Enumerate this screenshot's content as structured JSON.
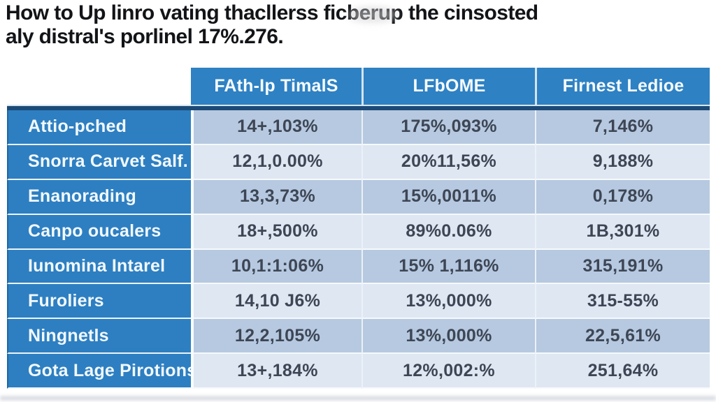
{
  "title": {
    "line1": "How to Up linro vating thacllerss ficberup the cinsosted",
    "line2": "aly distral's porlinel 17%.276."
  },
  "chart_data": {
    "type": "table",
    "title": "How to Up linro vating thacllerss ficberup the cinsosted aly distral's porlinel 17%.276.",
    "columns": [
      "FAth-Ip TimalS",
      "LFbOME",
      "Firnest Ledioe"
    ],
    "rows": [
      {
        "label": "Attio-pched",
        "values": [
          "14+,103%",
          "175%,093%",
          "7,146%"
        ]
      },
      {
        "label": "Snorra Carvet Salf.",
        "values": [
          "12,1,0.00%",
          "20%11,56%",
          "9,188%"
        ]
      },
      {
        "label": "Enanorading",
        "values": [
          "13,3,73%",
          "15%,0011%",
          "0,178%"
        ]
      },
      {
        "label": "Canpo oucalers",
        "values": [
          "18+,500%",
          "89%0.06%",
          "1B,301%"
        ]
      },
      {
        "label": "Iunomina Intarel",
        "values": [
          "10,1:1:06%",
          "15% 1,116%",
          "315,191%"
        ]
      },
      {
        "label": "Furoliers",
        "values": [
          "14,10 J6%",
          "13%,000%",
          "315-55%"
        ]
      },
      {
        "label": "Ningnetls",
        "values": [
          "12,2,105%",
          "13%,000%",
          "22,5,61%"
        ]
      },
      {
        "label": "Gota Lage Pirotions",
        "values": [
          "13+,184%",
          "12%,002:%",
          "251,64%"
        ]
      }
    ]
  },
  "colors": {
    "header_bg": "#2e81c3",
    "row_label_bg": "#2d7fc1",
    "stripe_dark": "#b6c9e0",
    "stripe_light": "#dee7f2",
    "divider_navy": "#1c4a77",
    "value_text": "#3e4655",
    "title_text": "#121417"
  }
}
